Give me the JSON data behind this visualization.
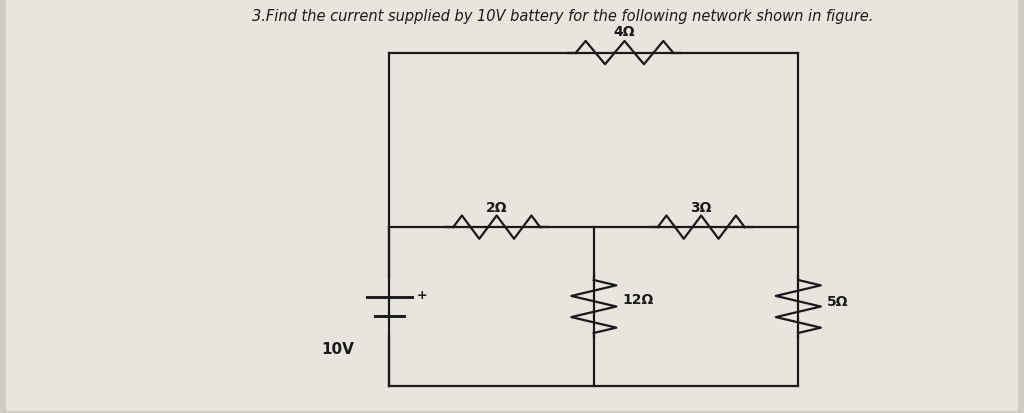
{
  "title": "3.Find the current supplied by 10V battery for the following network shown in figure.",
  "title_fontsize": 10.5,
  "bg_color": "#d0ccc6",
  "paper_color": "#e8e4de",
  "line_color": "#1a1a1a",
  "text_color": "#1a1a1a",
  "resistor_4": "4Ω",
  "resistor_2": "2Ω",
  "resistor_3": "3Ω",
  "resistor_12": "12Ω",
  "resistor_5": "5Ω",
  "battery_label": "10V",
  "figsize": [
    10.24,
    4.14
  ],
  "dpi": 100,
  "xl": 3.8,
  "xm": 5.8,
  "xr": 7.8,
  "yb": 0.5,
  "ymid": 3.5,
  "ytop": 6.8
}
